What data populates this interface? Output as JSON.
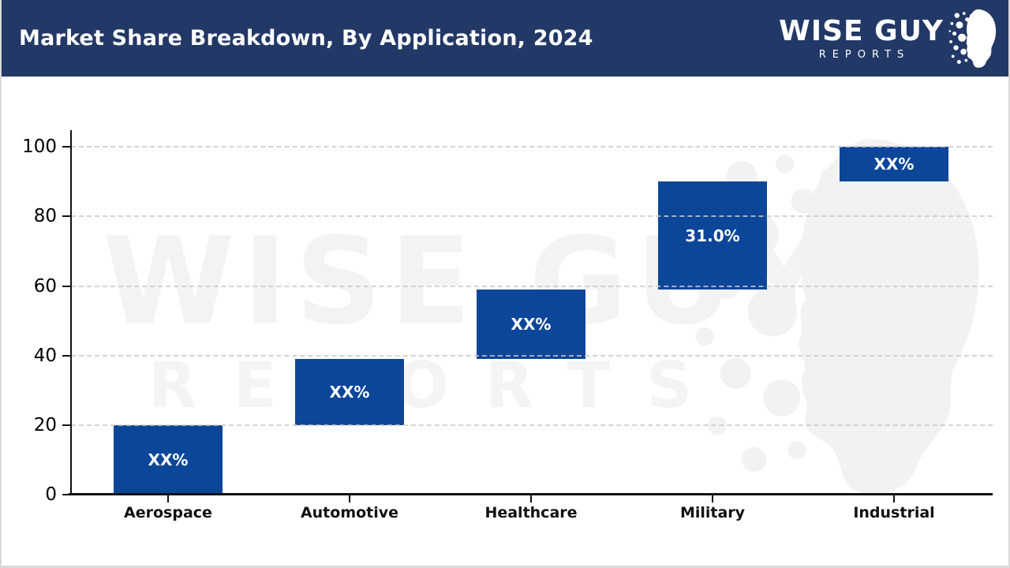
{
  "header": {
    "title": "Market Share Breakdown, By Application, 2024"
  },
  "logo": {
    "name": "WISE GUY",
    "subtitle": "REPORTS",
    "face_icon": "dotted-face-profile"
  },
  "watermark": {
    "line1": "WISE GUY",
    "line2": "REPORTS"
  },
  "colors": {
    "header_bg": "#223866",
    "bar_blue": "#0c4699",
    "axis": "#111111",
    "gridline": "#c9c9c9",
    "bar_label_text": "#ffffff",
    "watermark": "#f3f3f3"
  },
  "chart_data": {
    "type": "bar",
    "subtype": "waterfall",
    "title": "Market Share Breakdown, By Application, 2024",
    "categories": [
      "Aerospace",
      "Automotive",
      "Healthcare",
      "Military",
      "Industrial"
    ],
    "series": [
      {
        "name": "Market Share",
        "segments": [
          {
            "category": "Aerospace",
            "start": 0,
            "end": 20,
            "label": "XX%"
          },
          {
            "category": "Automotive",
            "start": 20,
            "end": 39,
            "label": "XX%"
          },
          {
            "category": "Healthcare",
            "start": 39,
            "end": 59,
            "label": "XX%"
          },
          {
            "category": "Military",
            "start": 59,
            "end": 90,
            "label": "31.0%"
          },
          {
            "category": "Industrial",
            "start": 90,
            "end": 100,
            "label": "XX%"
          }
        ]
      }
    ],
    "xlabel": "",
    "ylabel": "",
    "ylim": [
      0,
      100
    ],
    "yticks": [
      0,
      20,
      40,
      60,
      80,
      100
    ],
    "grid": "horizontal-dashed-over-bars",
    "legend": "none"
  }
}
